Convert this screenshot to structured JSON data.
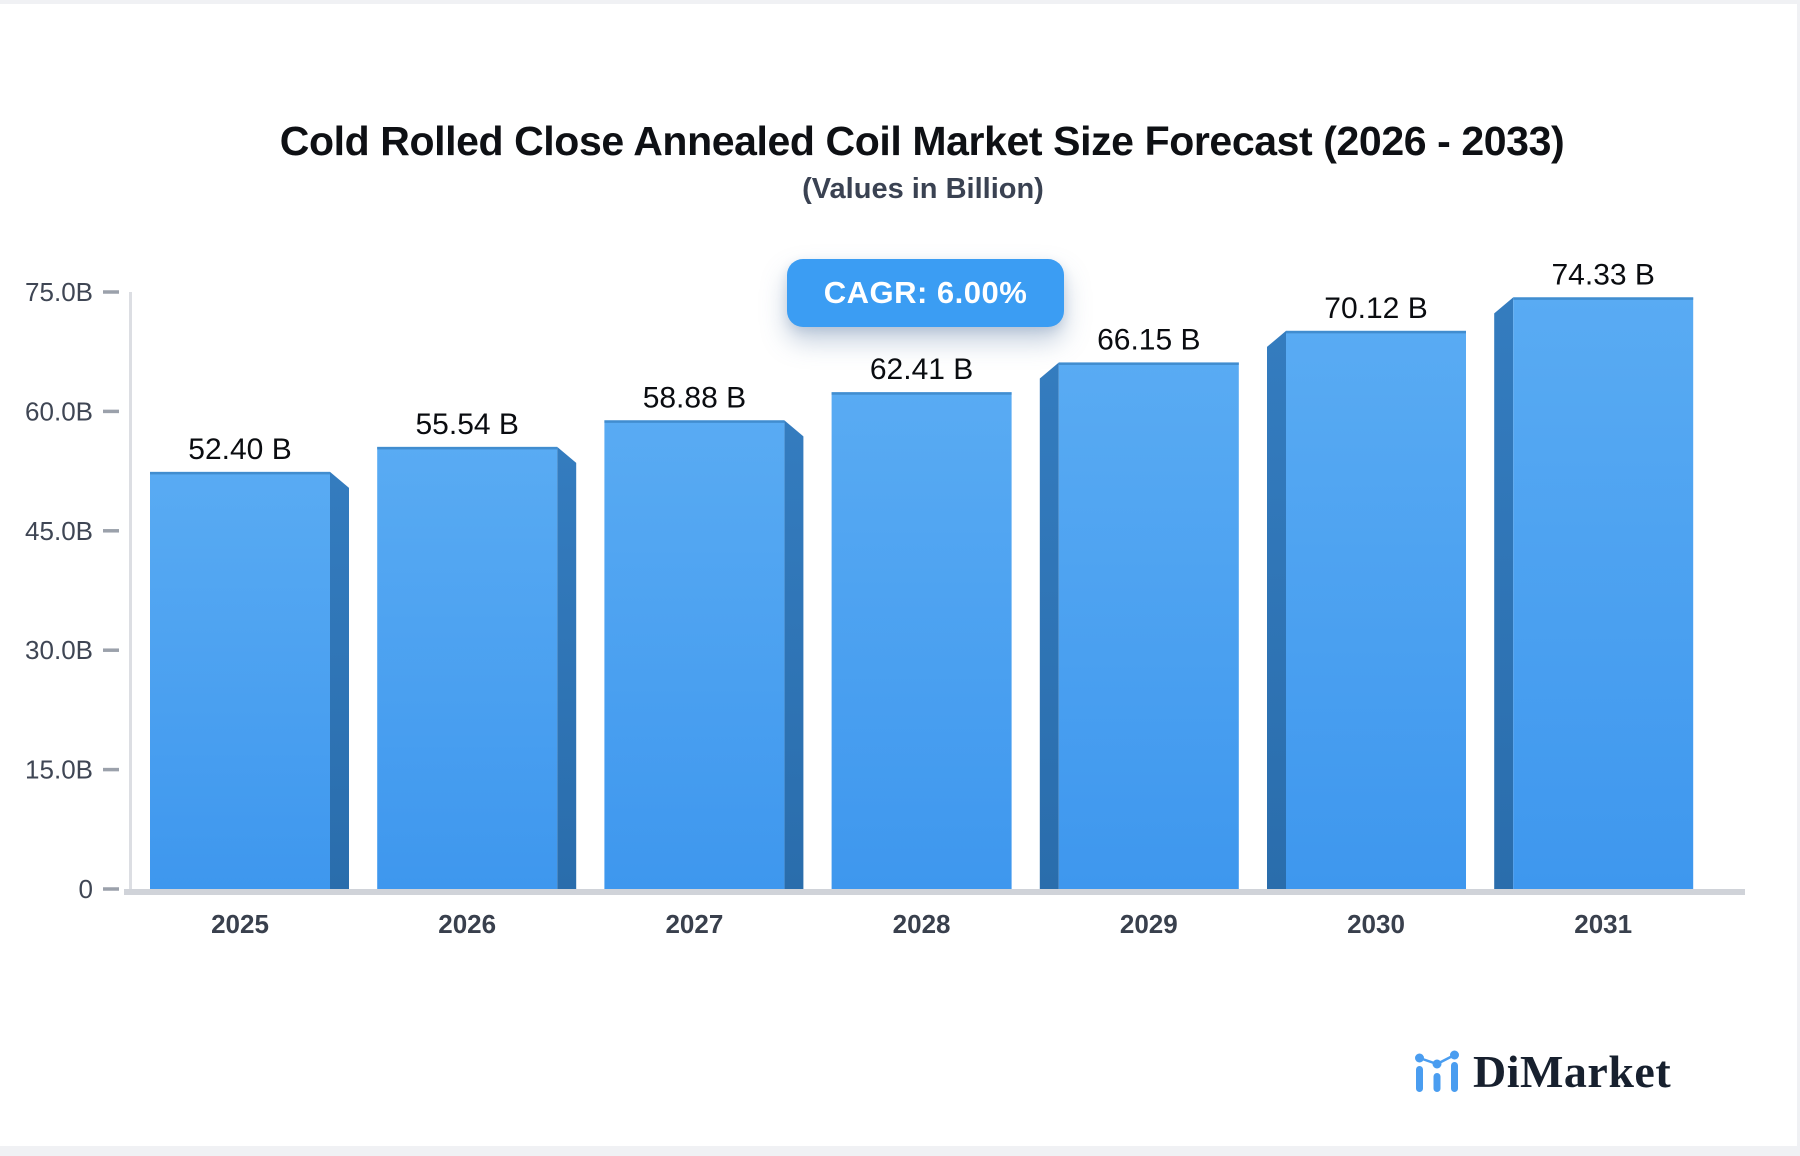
{
  "header": {
    "title": "Cold Rolled Close Annealed Coil Market Size Forecast (2026 - 2033)",
    "subtitle": "(Values in Billion)"
  },
  "badge": {
    "label": "CAGR: 6.00%",
    "background": "#3B9DF3",
    "text_color": "#FFFFFF"
  },
  "chart_data": {
    "type": "bar",
    "title": "Cold Rolled Close Annealed Coil Market Size Forecast (2026 - 2033)",
    "subtitle": "(Values in Billion)",
    "cagr_label": "CAGR: 6.00%",
    "categories": [
      "2025",
      "2026",
      "2027",
      "2028",
      "2029",
      "2030",
      "2031"
    ],
    "values": [
      52.4,
      55.54,
      58.88,
      62.41,
      66.15,
      70.12,
      74.33
    ],
    "value_labels": [
      "52.40 B",
      "55.54 B",
      "58.88 B",
      "62.41 B",
      "66.15 B",
      "70.12 B",
      "74.33 B"
    ],
    "yticks": {
      "values": [
        0,
        15,
        30,
        45,
        60,
        75
      ],
      "labels": [
        "0",
        "15.0B",
        "30.0B",
        "45.0B",
        "60.0B",
        "75.0B"
      ]
    },
    "ylim": [
      0,
      75
    ],
    "xlabel": "",
    "ylabel": "",
    "grid": false,
    "legend": false,
    "style": "3d-perspective-bars, side bevel faces outward from chart center",
    "colors": {
      "bar_face_top": "#59ABF3",
      "bar_face_bottom": "#3E97EE",
      "bar_side_top": "#347CBF",
      "bar_side_bottom": "#2A6DAC",
      "bar_top_edge": "#3D87C8",
      "axis_line": "#DCDEE3",
      "baseline": "#D0D3D9",
      "tick_dash": "#9BA1AB",
      "tick_text": "#3F4654",
      "value_text": "#0A0C10",
      "category_text": "#39404D"
    }
  },
  "footer": {
    "brand": "DiMarket",
    "logo_icon": "mini-bar-chart-icon",
    "brand_color": "#17202E",
    "icon_color": "#4A9DF0"
  }
}
